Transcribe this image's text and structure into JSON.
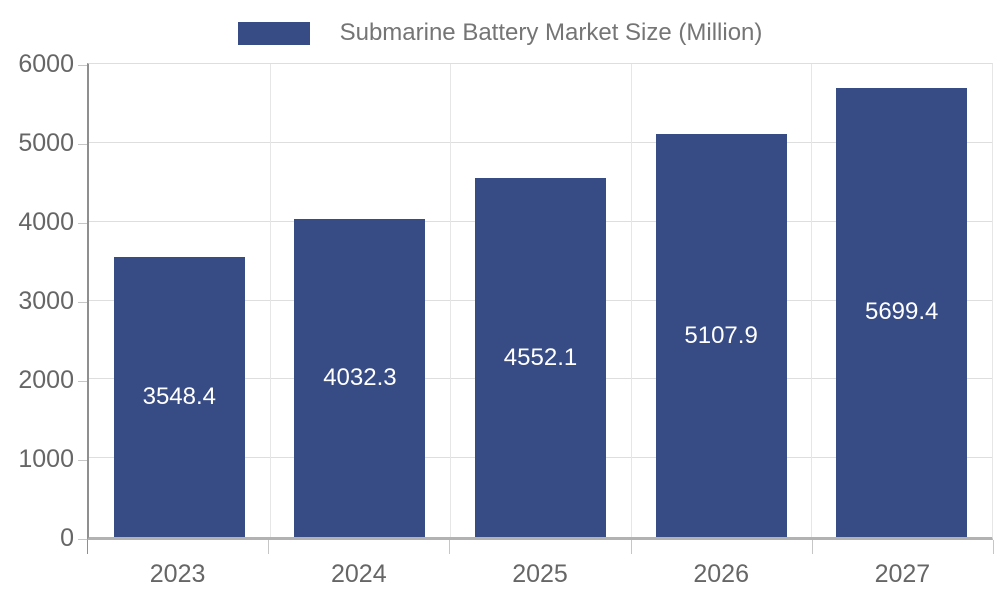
{
  "legend": {
    "label": "Submarine Battery Market Size (Million)"
  },
  "chart_data": {
    "type": "bar",
    "title": "Submarine Battery Market Size (Million)",
    "categories": [
      "2023",
      "2024",
      "2025",
      "2026",
      "2027"
    ],
    "values": [
      3548.4,
      4032.3,
      4552.1,
      5107.9,
      5699.4
    ],
    "bar_labels": [
      "3548.4",
      "4032.3",
      "4552.1",
      "5107.9",
      "5699.4"
    ],
    "xlabel": "",
    "ylabel": "",
    "ylim": [
      0,
      6000
    ],
    "yticks": [
      0,
      1000,
      2000,
      3000,
      4000,
      5000,
      6000
    ],
    "ytick_labels": [
      "0",
      "1000",
      "2000",
      "3000",
      "4000",
      "5000",
      "6000"
    ],
    "grid": true,
    "legend_position": "top-center",
    "colors": {
      "bar": "#374b85",
      "bar_label_text": "#ffffff",
      "axis_text": "#666666",
      "legend_text": "#757575",
      "gridline": "#dedede",
      "axis_line": "#8f8f8f"
    }
  }
}
